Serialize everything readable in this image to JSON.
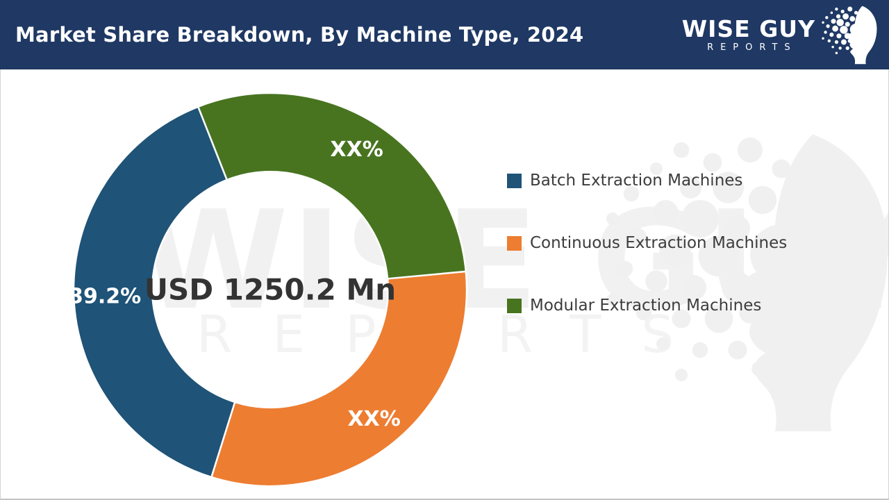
{
  "header": {
    "title": "Market Share Breakdown, By Machine Type, 2024",
    "brand": {
      "line1": "WISE GUY",
      "line2": "REPORTS"
    }
  },
  "watermark": {
    "line1": "WISE GUY",
    "line2": "REPORTS"
  },
  "chart_data": {
    "type": "pie",
    "subtype": "donut",
    "title": "Market Share Breakdown, By Machine Type, 2024",
    "center_label": "USD 1250.2 Mn",
    "start_angle_deg": 111.5,
    "direction": "counterclockwise",
    "inner_radius_ratio": 0.6,
    "legend_position": "right",
    "slices": [
      {
        "label": "Batch Extraction Machines",
        "value_pct": 39.2,
        "display_label": "39.2%",
        "color": "#1F5377"
      },
      {
        "label": "Continuous Extraction Machines",
        "value_pct": 31.3,
        "display_label": "XX%",
        "color": "#ED7D31"
      },
      {
        "label": "Modular Extraction Machines",
        "value_pct": 29.5,
        "display_label": "XX%",
        "color": "#487420"
      }
    ]
  },
  "colors": {
    "header_background": "#1F3864",
    "slice_label_text": "#FFFFFF",
    "center_label_text": "#333333",
    "legend_text": "#3C3C3C"
  }
}
